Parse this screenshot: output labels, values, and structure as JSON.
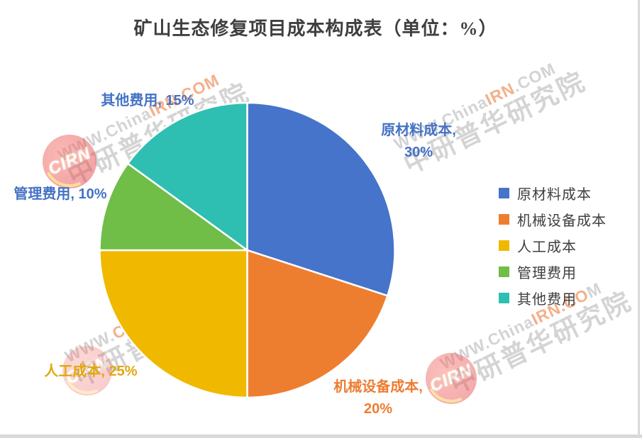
{
  "title": "矿山生态修复项目成本构成表（单位：%）",
  "chart_data": {
    "type": "pie",
    "title": "矿山生态修复项目成本构成表（单位：%）",
    "unit": "%",
    "categories": [
      "原材料成本",
      "机械设备成本",
      "人工成本",
      "管理费用",
      "其他费用"
    ],
    "values": [
      30,
      20,
      25,
      10,
      15
    ],
    "colors": [
      "#4574CA",
      "#EE7E2F",
      "#F0B900",
      "#70BD47",
      "#2FBFB2"
    ],
    "start_angle_deg": 0,
    "direction": "clockwise",
    "legend_position": "right",
    "data_labels": [
      "原材料成本, 30%",
      "机械设备成本, 20%",
      "人工成本, 25%",
      "管理费用, 10%",
      "其他费用, 15%"
    ]
  },
  "slice_labels": [
    {
      "line1": "原材料成本,",
      "line2": "30%",
      "color": "#4472C4"
    },
    {
      "line1": "机械设备成本,",
      "line2": "20%",
      "color": "#ED7D31"
    },
    {
      "line1": "人工成本, 25%",
      "line2": "",
      "color": "#E2A70D"
    },
    {
      "line1": "管理费用, 10%",
      "line2": "",
      "color": "#4472C4"
    },
    {
      "line1": "其他费用, 15%",
      "line2": "",
      "color": "#4472C4"
    }
  ],
  "legend": {
    "items": [
      {
        "label": "原材料成本"
      },
      {
        "label": "机械设备成本"
      },
      {
        "label": "人工成本"
      },
      {
        "label": "管理费用"
      },
      {
        "label": "其他费用"
      }
    ]
  },
  "watermark": {
    "badge_text": "CIRN",
    "blocks": [
      {
        "pre": "WWW.China",
        "hi": "IRN.COM",
        "post": "",
        "line2": "中研普华研究院"
      },
      {
        "pre": "WWW.China",
        "hi": "IRN",
        "post": ".COM",
        "line2": "中研普华研究院"
      },
      {
        "pre": "WWW.",
        "hi": "ChinaIRN.CO",
        "post": "M",
        "line2": "中研普华研究院"
      },
      {
        "pre": "WWW.China",
        "hi": "IRN.CO",
        "post": "M",
        "line2": "中研普华研究院"
      }
    ]
  }
}
